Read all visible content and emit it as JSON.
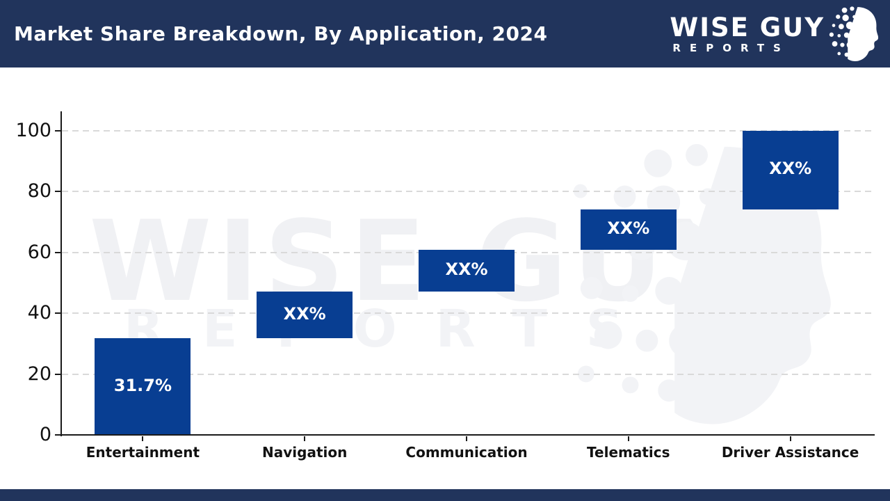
{
  "header": {
    "title": "Market Share Breakdown, By Application, 2024",
    "logo_line1": "WISE GUY",
    "logo_line2": "REPORTS",
    "bg_color": "#21345c",
    "text_color": "#ffffff"
  },
  "watermark": {
    "line1": "WISE GUY",
    "line2": "REPORTS"
  },
  "footer": {
    "bg_color": "#21345c"
  },
  "chart_data": {
    "type": "bar",
    "subtype": "floating-waterfall",
    "title": "Market Share Breakdown, By Application, 2024",
    "xlabel": "",
    "ylabel": "",
    "categories": [
      "Entertainment",
      "Navigation",
      "Communication",
      "Telematics",
      "Driver Assistance"
    ],
    "segments": [
      {
        "category": "Entertainment",
        "start": 0,
        "end": 31.7,
        "label": "31.7%"
      },
      {
        "category": "Navigation",
        "start": 31.7,
        "end": 47.1,
        "label": "XX%"
      },
      {
        "category": "Communication",
        "start": 47.1,
        "end": 60.7,
        "label": "XX%"
      },
      {
        "category": "Telematics",
        "start": 60.7,
        "end": 74.1,
        "label": "XX%"
      },
      {
        "category": "Driver Assistance",
        "start": 74.1,
        "end": 100,
        "label": "XX%"
      }
    ],
    "values": [
      31.7,
      15.4,
      13.6,
      13.4,
      25.9
    ],
    "yticks": [
      0,
      20,
      40,
      60,
      80,
      100
    ],
    "ylim": [
      0,
      106
    ],
    "grid": "horizontal-dashed",
    "legend": "none",
    "bar_color": "#083e92",
    "bar_label_color": "#ffffff",
    "axis_color": "#1a1a1a",
    "gridline_color": "#d9d9d9"
  }
}
